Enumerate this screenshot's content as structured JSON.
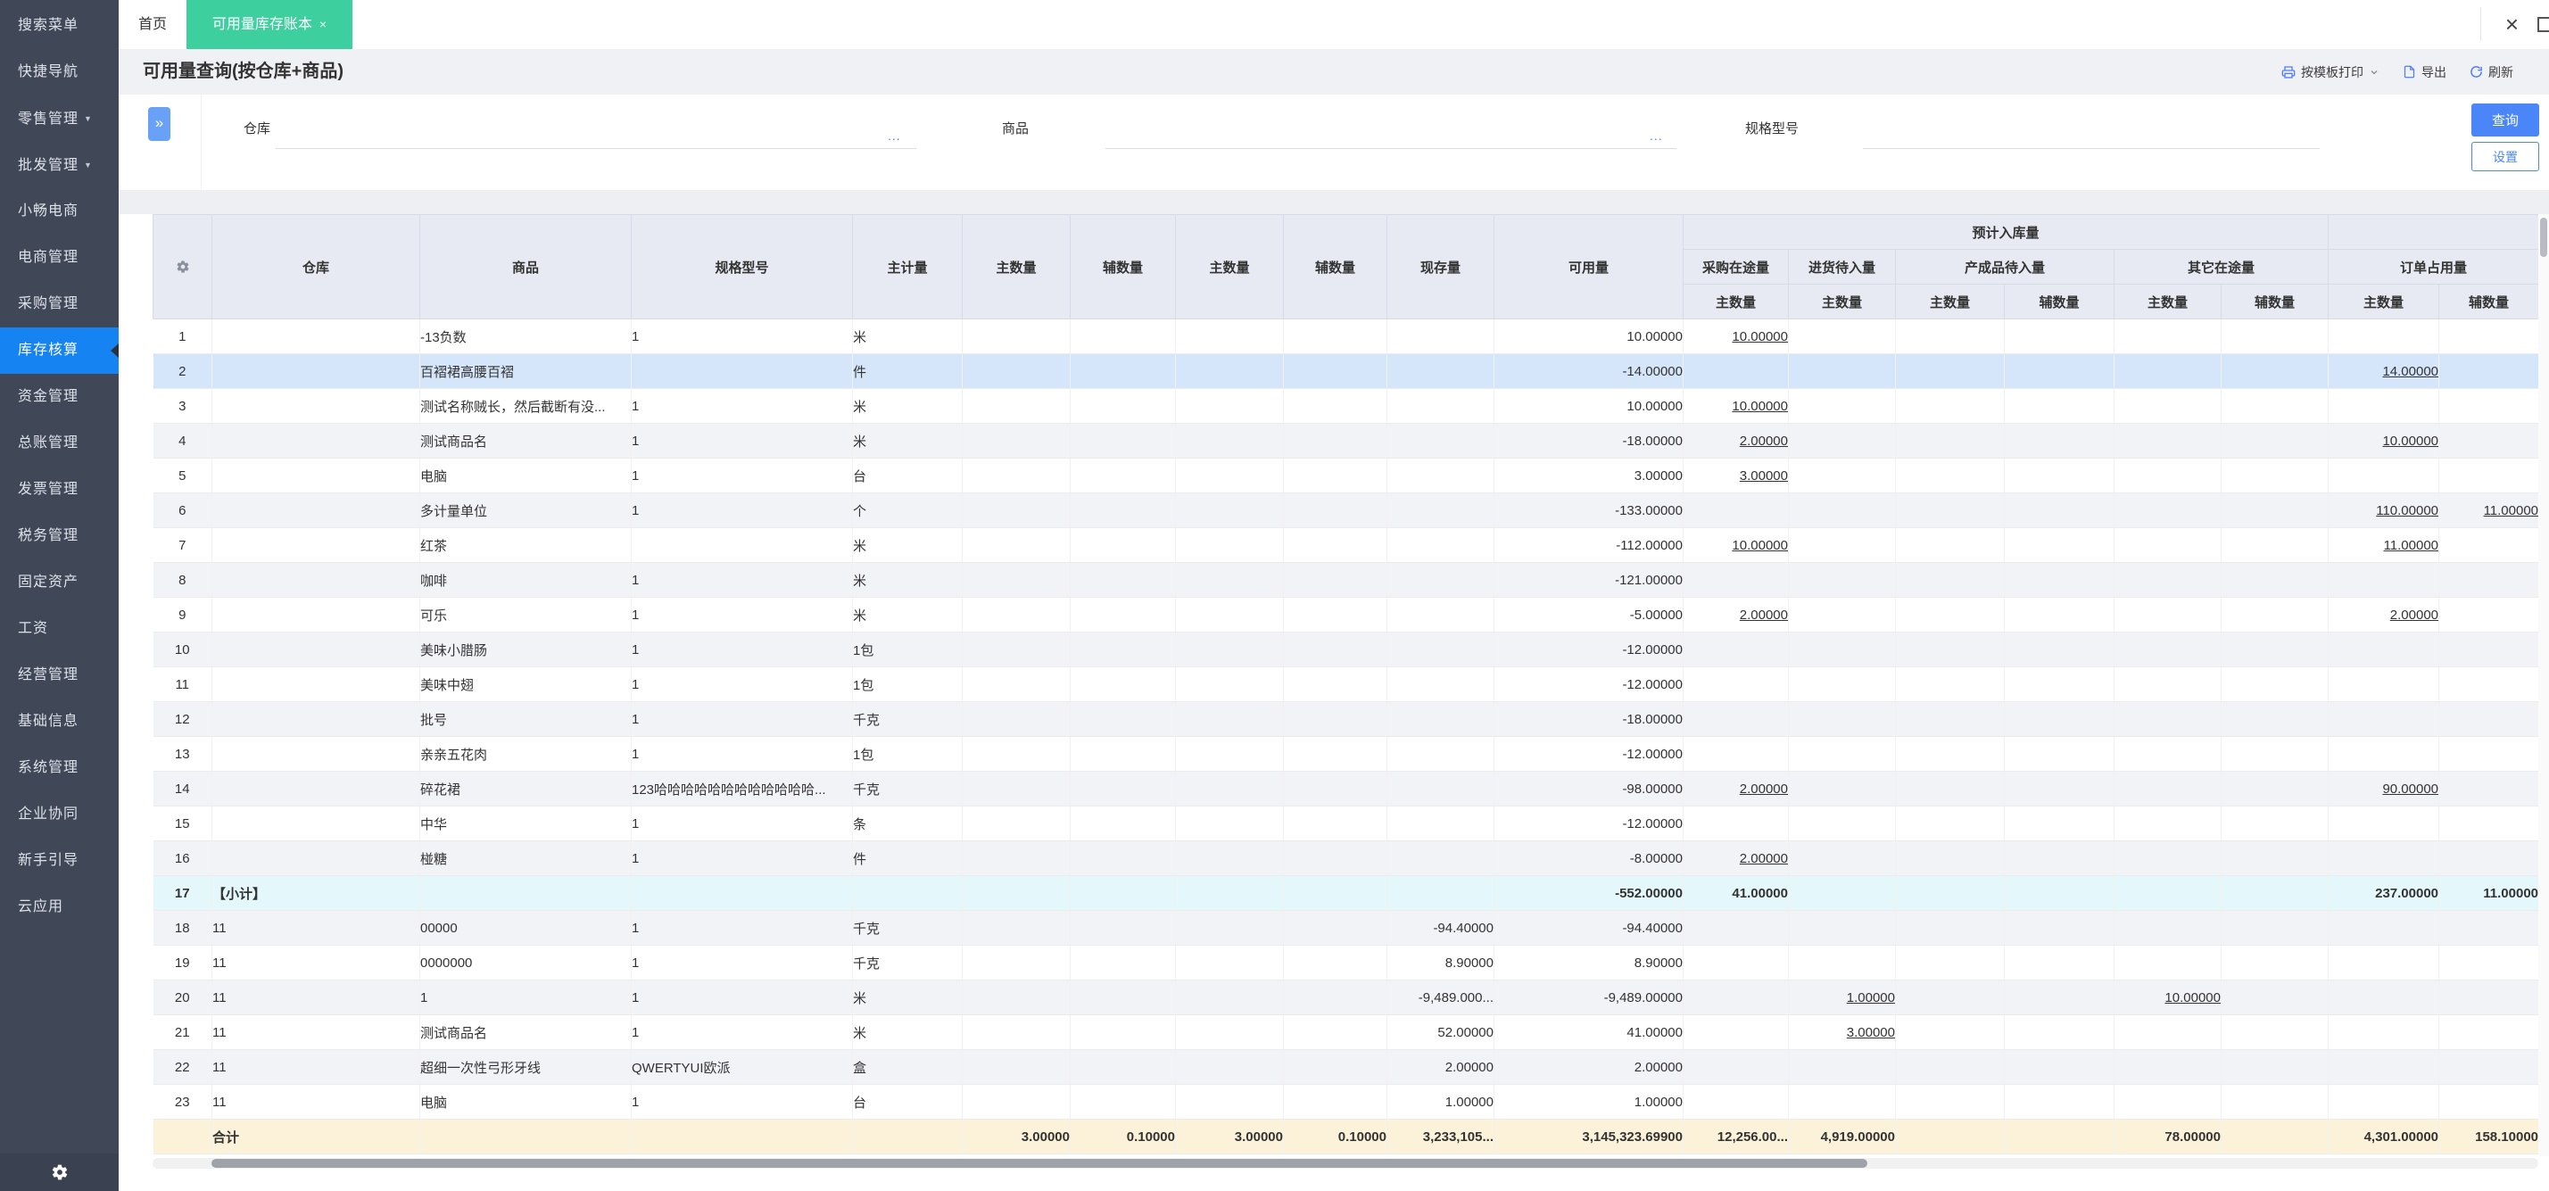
{
  "colors": {
    "sidebar_bg": "#404757",
    "active_blue": "#1583f2",
    "tab_green": "#3ecf9f",
    "accent_blue": "#4a86f7",
    "negative_red": "#f0362b",
    "selected_row_bg": "#d5e5fa",
    "subtotal_row_bg": "#e4f7fb",
    "total_row_bg": "#fbf2d9"
  },
  "icons": {
    "collapse": "»",
    "more": "...",
    "tab_close": "×",
    "window_close": "×",
    "menu_caret": "▼",
    "settings_gear": "gear",
    "print": "printer",
    "export": "document",
    "refresh": "circular-arrow"
  },
  "sidebar": {
    "items": [
      {
        "label": "搜索菜单"
      },
      {
        "label": "快捷导航"
      },
      {
        "label": "零售管理",
        "arrow": true
      },
      {
        "label": "批发管理",
        "arrow": true
      },
      {
        "label": "小畅电商"
      },
      {
        "label": "电商管理"
      },
      {
        "label": "采购管理"
      },
      {
        "label": "库存核算",
        "active": true
      },
      {
        "label": "资金管理"
      },
      {
        "label": "总账管理"
      },
      {
        "label": "发票管理"
      },
      {
        "label": "税务管理"
      },
      {
        "label": "固定资产"
      },
      {
        "label": "工资"
      },
      {
        "label": "经营管理"
      },
      {
        "label": "基础信息"
      },
      {
        "label": "系统管理"
      },
      {
        "label": "企业协同"
      },
      {
        "label": "新手引导"
      },
      {
        "label": "云应用"
      }
    ]
  },
  "tabs": {
    "home": "首页",
    "current": "可用量库存账本",
    "close": "×"
  },
  "window": {
    "close": "×"
  },
  "page": {
    "title": "可用量查询(按仓库+商品)"
  },
  "toolbar": {
    "print": "按模板打印",
    "export": "导出",
    "refresh": "刷新"
  },
  "filters": {
    "collapse": "»",
    "warehouse": "仓库",
    "product": "商品",
    "spec": "规格型号",
    "more": "...",
    "query": "查询",
    "settings": "设置"
  },
  "table": {
    "header": {
      "warehouse": "仓库",
      "product": "商品",
      "spec": "规格型号",
      "unit": "主计量",
      "qty_main": "主数量",
      "qty_aux": "辅数量",
      "onhand": "现存量",
      "available": "可用量",
      "expected_in": "预计入库量",
      "purchase_transit": "采购在途量",
      "incoming_pending": "进货待入量",
      "finished_pending": "产成品待入量",
      "other_transit": "其它在途量",
      "order_occupied": "订单占用量"
    },
    "rows": [
      {
        "cells": [
          "1",
          "",
          {
            "v": "-13负数",
            "red": true
          },
          "1",
          "米",
          "",
          "",
          "",
          "",
          "",
          "10.00000",
          {
            "v": "10.00000",
            "link": true
          },
          "",
          "",
          "",
          "",
          "",
          "",
          ""
        ]
      },
      {
        "type": "selected",
        "cells": [
          "2",
          "",
          "百褶裙高腰百褶",
          "",
          "件",
          "",
          "",
          "",
          "",
          "",
          {
            "v": "-14.00000",
            "red": true
          },
          "",
          "",
          "",
          "",
          "",
          "",
          {
            "v": "14.00000",
            "link": true
          },
          ""
        ]
      },
      {
        "cells": [
          "3",
          "",
          "测试名称贼长，然后截断有没...",
          "1",
          "米",
          "",
          "",
          "",
          "",
          "",
          "10.00000",
          {
            "v": "10.00000",
            "link": true
          },
          "",
          "",
          "",
          "",
          "",
          "",
          ""
        ]
      },
      {
        "cells": [
          "4",
          "",
          "测试商品名",
          "1",
          "米",
          "",
          "",
          "",
          "",
          "",
          {
            "v": "-18.00000",
            "red": true
          },
          {
            "v": "2.00000",
            "link": true
          },
          "",
          "",
          "",
          "",
          "",
          {
            "v": "10.00000",
            "link": true
          },
          ""
        ]
      },
      {
        "cells": [
          "5",
          "",
          "电脑",
          "1",
          "台",
          "",
          "",
          "",
          "",
          "",
          "3.00000",
          {
            "v": "3.00000",
            "link": true
          },
          "",
          "",
          "",
          "",
          "",
          "",
          ""
        ]
      },
      {
        "cells": [
          "6",
          "",
          "多计量单位",
          "1",
          "个",
          "",
          "",
          "",
          "",
          "",
          {
            "v": "-133.00000",
            "red": true
          },
          "",
          "",
          "",
          "",
          "",
          "",
          {
            "v": "110.00000",
            "link": true
          },
          {
            "v": "11.00000",
            "link": true
          }
        ]
      },
      {
        "cells": [
          "7",
          "",
          "红茶",
          "",
          "米",
          "",
          "",
          "",
          "",
          "",
          {
            "v": "-112.00000",
            "red": true
          },
          {
            "v": "10.00000",
            "link": true
          },
          "",
          "",
          "",
          "",
          "",
          {
            "v": "11.00000",
            "link": true
          },
          ""
        ]
      },
      {
        "cells": [
          "8",
          "",
          "咖啡",
          "1",
          "米",
          "",
          "",
          "",
          "",
          "",
          {
            "v": "-121.00000",
            "red": true
          },
          "",
          "",
          "",
          "",
          "",
          "",
          "",
          ""
        ]
      },
      {
        "cells": [
          "9",
          "",
          "可乐",
          "1",
          "米",
          "",
          "",
          "",
          "",
          "",
          {
            "v": "-5.00000",
            "red": true
          },
          {
            "v": "2.00000",
            "link": true
          },
          "",
          "",
          "",
          "",
          "",
          {
            "v": "2.00000",
            "link": true
          },
          ""
        ]
      },
      {
        "cells": [
          "10",
          "",
          "美味小腊肠",
          "1",
          "1包",
          "",
          "",
          "",
          "",
          "",
          {
            "v": "-12.00000",
            "red": true
          },
          "",
          "",
          "",
          "",
          "",
          "",
          "",
          ""
        ]
      },
      {
        "cells": [
          "11",
          "",
          "美味中翅",
          "1",
          "1包",
          "",
          "",
          "",
          "",
          "",
          {
            "v": "-12.00000",
            "red": true
          },
          "",
          "",
          "",
          "",
          "",
          "",
          "",
          ""
        ]
      },
      {
        "cells": [
          "12",
          "",
          "批号",
          "1",
          "千克",
          "",
          "",
          "",
          "",
          "",
          {
            "v": "-18.00000",
            "red": true
          },
          "",
          "",
          "",
          "",
          "",
          "",
          "",
          ""
        ]
      },
      {
        "cells": [
          "13",
          "",
          "亲亲五花肉",
          "1",
          "1包",
          "",
          "",
          "",
          "",
          "",
          {
            "v": "-12.00000",
            "red": true
          },
          "",
          "",
          "",
          "",
          "",
          "",
          "",
          ""
        ]
      },
      {
        "cells": [
          "14",
          "",
          "碎花裙",
          "123哈哈哈哈哈哈哈哈哈哈哈哈...",
          "千克",
          "",
          "",
          "",
          "",
          "",
          {
            "v": "-98.00000",
            "red": true
          },
          {
            "v": "2.00000",
            "link": true
          },
          "",
          "",
          "",
          "",
          "",
          {
            "v": "90.00000",
            "link": true
          },
          ""
        ]
      },
      {
        "cells": [
          "15",
          "",
          "中华",
          "1",
          "条",
          "",
          "",
          "",
          "",
          "",
          {
            "v": "-12.00000",
            "red": true
          },
          "",
          "",
          "",
          "",
          "",
          "",
          "",
          ""
        ]
      },
      {
        "cells": [
          "16",
          "",
          "椪糖",
          "1",
          "件",
          "",
          "",
          "",
          "",
          "",
          {
            "v": "-8.00000",
            "red": true
          },
          {
            "v": "2.00000",
            "link": true
          },
          "",
          "",
          "",
          "",
          "",
          "",
          ""
        ]
      },
      {
        "type": "subtotal",
        "cells": [
          "17",
          "【小计】",
          "",
          "",
          "",
          "",
          "",
          "",
          "",
          "",
          {
            "v": "-552.00000",
            "red": true
          },
          "41.00000",
          "",
          "",
          "",
          "",
          "",
          "237.00000",
          "11.00000"
        ]
      },
      {
        "cells": [
          "18",
          "11",
          "00000",
          "1",
          "千克",
          "",
          "",
          "",
          "",
          {
            "v": "-94.40000",
            "red": true
          },
          {
            "v": "-94.40000",
            "red": true
          },
          "",
          "",
          "",
          "",
          "",
          "",
          "",
          ""
        ]
      },
      {
        "cells": [
          "19",
          "11",
          "0000000",
          "1",
          "千克",
          "",
          "",
          "",
          "",
          "8.90000",
          "8.90000",
          "",
          "",
          "",
          "",
          "",
          "",
          "",
          ""
        ]
      },
      {
        "cells": [
          "20",
          "11",
          "1",
          "1",
          "米",
          "",
          "",
          "",
          "",
          {
            "v": "-9,489.000...",
            "red": true
          },
          {
            "v": "-9,489.00000",
            "red": true
          },
          "",
          {
            "v": "1.00000",
            "link": true
          },
          "",
          "",
          {
            "v": "10.00000",
            "link": true
          },
          "",
          "",
          ""
        ]
      },
      {
        "cells": [
          "21",
          "11",
          "测试商品名",
          "1",
          "米",
          "",
          "",
          "",
          "",
          "52.00000",
          "41.00000",
          "",
          {
            "v": "3.00000",
            "link": true
          },
          "",
          "",
          "",
          "",
          "",
          ""
        ]
      },
      {
        "cells": [
          "22",
          "11",
          "超细一次性弓形牙线",
          "QWERTYUI欧派",
          "盒",
          "",
          "",
          "",
          "",
          "2.00000",
          "2.00000",
          "",
          "",
          "",
          "",
          "",
          "",
          "",
          ""
        ]
      },
      {
        "cells": [
          "23",
          "11",
          "电脑",
          "1",
          "台",
          "",
          "",
          "",
          "",
          "1.00000",
          "1.00000",
          "",
          "",
          "",
          "",
          "",
          "",
          "",
          ""
        ]
      },
      {
        "type": "total",
        "cells": [
          "",
          "合计",
          "",
          "",
          "",
          "3.00000",
          "0.10000",
          "3.00000",
          "0.10000",
          "3,233,105...",
          "3,145,323.69900",
          "12,256.00...",
          "4,919.00000",
          "",
          "",
          "78.00000",
          "",
          "4,301.00000",
          "158.10000"
        ]
      }
    ]
  }
}
